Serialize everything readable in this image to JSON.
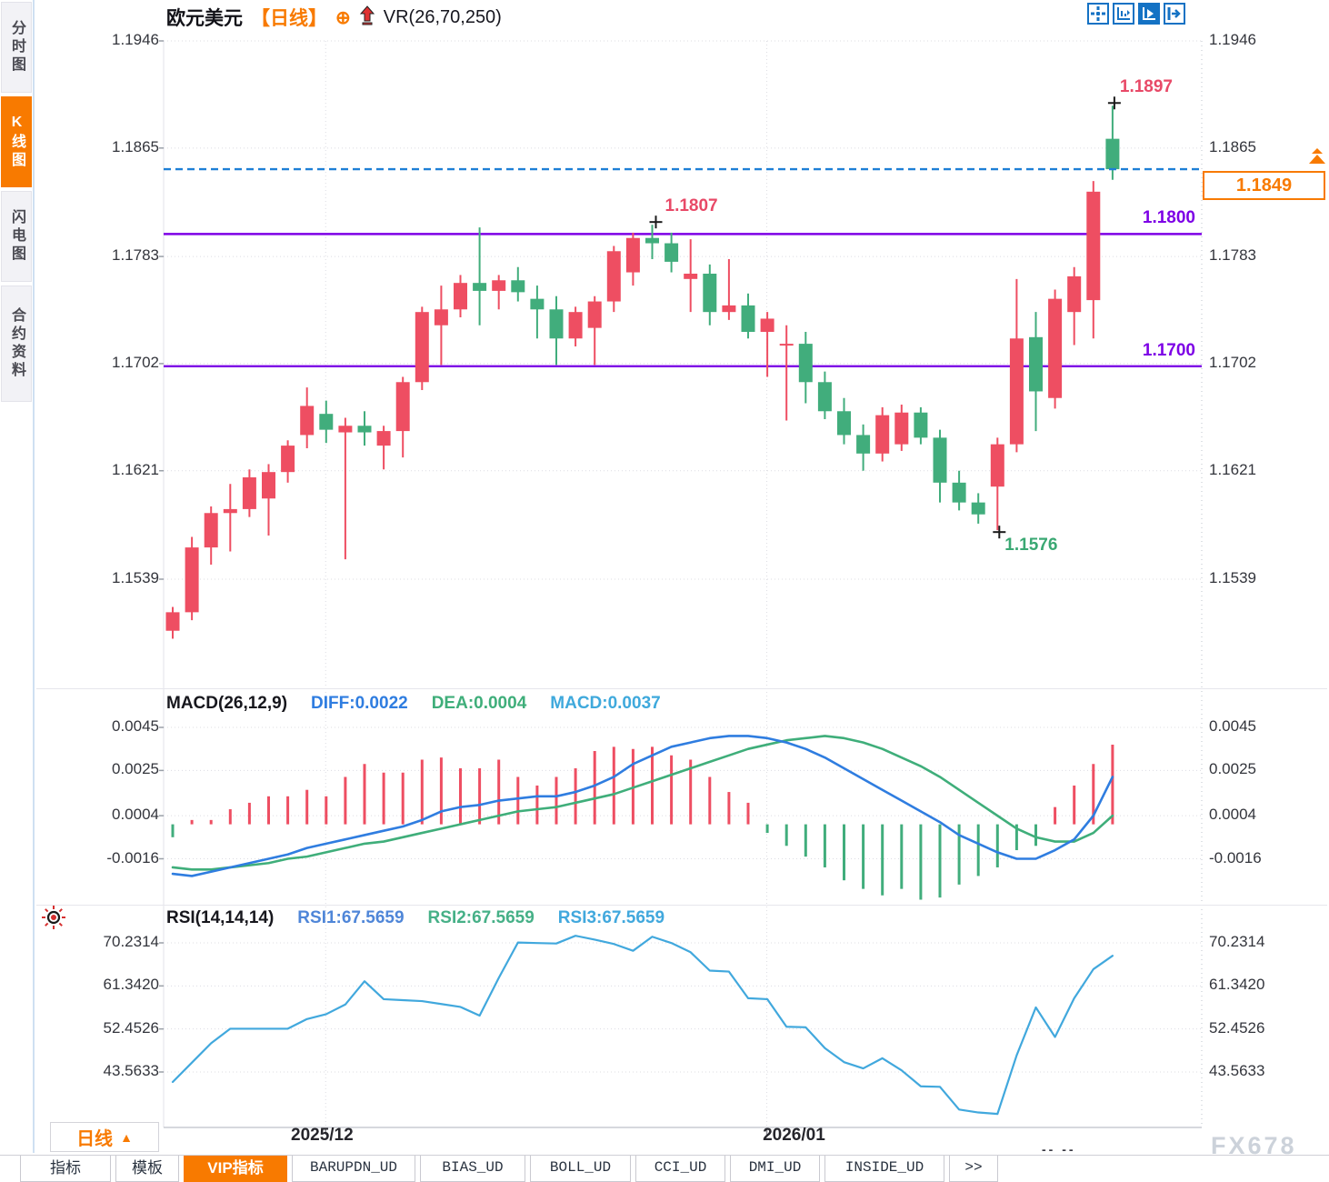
{
  "header": {
    "symbol": "欧元美元",
    "period_tag": "【日线】",
    "plus_circle": "⊕",
    "indicator": "VR(26,70,250)"
  },
  "sidebar": {
    "tabs": [
      {
        "label": "分时图",
        "active": false
      },
      {
        "label": "K线图",
        "active": true
      },
      {
        "label": "闪电图",
        "active": false
      },
      {
        "label": "合约资料",
        "active": false
      }
    ]
  },
  "toolbar": {
    "icons": [
      {
        "name": "crosshair-pan-icon",
        "active": false
      },
      {
        "name": "axis-scale-icon",
        "active": false
      },
      {
        "name": "axis-play-icon",
        "active": true
      },
      {
        "name": "exit-right-icon",
        "active": false
      }
    ]
  },
  "price_panel": {
    "axis_labels": [
      "1.1946",
      "1.1865",
      "1.1783",
      "1.1702",
      "1.1621",
      "1.1539"
    ],
    "level_labels": {
      "resistance": "1.1800",
      "support": "1.1700"
    },
    "marked_labels": {
      "end_high": "1.1897",
      "peak": "1.1807",
      "low": "1.1576"
    },
    "last_price": "1.1849"
  },
  "macd_panel": {
    "title": "MACD(26,12,9)",
    "diff_label": "DIFF:0.0022",
    "dea_label": "DEA:0.0004",
    "macd_label": "MACD:0.0037",
    "axis_labels": [
      "0.0045",
      "0.0025",
      "0.0004",
      "-0.0016"
    ]
  },
  "rsi_panel": {
    "title": "RSI(14,14,14)",
    "rsi1_label": "RSI1:67.5659",
    "rsi2_label": "RSI2:67.5659",
    "rsi3_label": "RSI3:67.5659",
    "axis_labels": [
      "70.2314",
      "61.3420",
      "52.4526",
      "43.5633"
    ]
  },
  "bottom": {
    "period_button": "日线",
    "period_caret": "▲",
    "mini_dashes": "-- --",
    "watermark": "FX678",
    "tabs": [
      {
        "label": "指标",
        "active": false,
        "mono": false
      },
      {
        "label": "模板",
        "active": false,
        "mono": false
      },
      {
        "label": "VIP指标",
        "active": true,
        "mono": false
      },
      {
        "label": "BARUPDN_UD",
        "active": false,
        "mono": true
      },
      {
        "label": "BIAS_UD",
        "active": false,
        "mono": true
      },
      {
        "label": "BOLL_UD",
        "active": false,
        "mono": true
      },
      {
        "label": "CCI_UD",
        "active": false,
        "mono": true
      },
      {
        "label": "DMI_UD",
        "active": false,
        "mono": true
      },
      {
        "label": "INSIDE_UD",
        "active": false,
        "mono": true
      },
      {
        "label": ">>",
        "active": false,
        "mono": true
      }
    ]
  },
  "colors": {
    "up": "#ee4e62",
    "down": "#41ad7c",
    "level_purple": "#7d00e6",
    "last_price_blue": "#1e7fd6",
    "accent_orange": "#f87a00",
    "diff_blue": "#2f7de0",
    "dea_green": "#3fae7a",
    "macd_lightblue": "#3fa9dc",
    "rsi_line": "#41a8dd",
    "rsi1_text": "#4f86d8",
    "rsi2_text": "#46b087",
    "rsi3_text": "#41a8dd",
    "label_red": "#e84967",
    "label_green": "#3aa873",
    "grid": "#dcdce2",
    "marker_black": "#1b1b1b"
  },
  "chart_data": {
    "type": "candlestick+indicators",
    "symbol": "EUR/USD 欧元美元",
    "timeframe": "daily",
    "x_axis": {
      "month_ticks": [
        {
          "label": "2025/12",
          "line_index": 8,
          "label_index": 8.2
        },
        {
          "label": "2026/01",
          "line_index": 31,
          "label_index": 32.8
        }
      ]
    },
    "price": {
      "gridline_values": [
        1.1946,
        1.1865,
        1.1783,
        1.1702,
        1.1621,
        1.1539
      ],
      "levels": [
        {
          "value": 1.18,
          "label": "1.1800",
          "style": "solid-purple"
        },
        {
          "value": 1.17,
          "label": "1.1700",
          "style": "solid-purple"
        }
      ],
      "last_price": {
        "value": 1.1849,
        "label": "1.1849",
        "style": "dashed-blue"
      },
      "marked_points": [
        {
          "index": 25,
          "price": 1.1807,
          "label": "1.1807",
          "type": "peak"
        },
        {
          "index": 49,
          "price": 1.1897,
          "label": "1.1897",
          "type": "end_high"
        },
        {
          "index": 43,
          "price": 1.1576,
          "label": "1.1576",
          "type": "low"
        }
      ],
      "candles_ohlc": [
        [
          1.15,
          1.1518,
          1.1494,
          1.1514
        ],
        [
          1.1514,
          1.1571,
          1.1508,
          1.1563
        ],
        [
          1.1563,
          1.1594,
          1.155,
          1.1589
        ],
        [
          1.1589,
          1.1611,
          1.156,
          1.1592
        ],
        [
          1.1592,
          1.1622,
          1.1586,
          1.1616
        ],
        [
          1.16,
          1.1626,
          1.1572,
          1.162
        ],
        [
          1.162,
          1.1644,
          1.1612,
          1.164
        ],
        [
          1.1648,
          1.1684,
          1.1638,
          1.167
        ],
        [
          1.1664,
          1.1674,
          1.1642,
          1.1652
        ],
        [
          1.165,
          1.1661,
          1.1554,
          1.1655
        ],
        [
          1.1655,
          1.1666,
          1.164,
          1.165
        ],
        [
          1.164,
          1.1655,
          1.1622,
          1.1651
        ],
        [
          1.1651,
          1.1692,
          1.1631,
          1.1688
        ],
        [
          1.1688,
          1.1745,
          1.1682,
          1.1741
        ],
        [
          1.1731,
          1.1761,
          1.1701,
          1.1743
        ],
        [
          1.1743,
          1.1769,
          1.1737,
          1.1763
        ],
        [
          1.1763,
          1.1805,
          1.1731,
          1.1757
        ],
        [
          1.1757,
          1.1769,
          1.1743,
          1.1765
        ],
        [
          1.1765,
          1.1775,
          1.1749,
          1.1756
        ],
        [
          1.1751,
          1.1761,
          1.1721,
          1.1743
        ],
        [
          1.1743,
          1.1753,
          1.1701,
          1.1721
        ],
        [
          1.1721,
          1.1745,
          1.1715,
          1.1741
        ],
        [
          1.1729,
          1.1753,
          1.1701,
          1.1749
        ],
        [
          1.1749,
          1.1791,
          1.1741,
          1.1787
        ],
        [
          1.1771,
          1.1801,
          1.1761,
          1.1797
        ],
        [
          1.1797,
          1.1807,
          1.1781,
          1.1793
        ],
        [
          1.1793,
          1.1801,
          1.1771,
          1.1779
        ],
        [
          1.1766,
          1.1796,
          1.1741,
          1.177
        ],
        [
          1.177,
          1.1777,
          1.1731,
          1.1741
        ],
        [
          1.1741,
          1.1781,
          1.1735,
          1.1746
        ],
        [
          1.1746,
          1.1755,
          1.1721,
          1.1726
        ],
        [
          1.1726,
          1.1741,
          1.1692,
          1.1736
        ],
        [
          1.1716,
          1.1731,
          1.1659,
          1.1717
        ],
        [
          1.1717,
          1.1726,
          1.1672,
          1.1688
        ],
        [
          1.1688,
          1.1696,
          1.166,
          1.1666
        ],
        [
          1.1666,
          1.1676,
          1.1641,
          1.1648
        ],
        [
          1.1648,
          1.1656,
          1.1621,
          1.1634
        ],
        [
          1.1634,
          1.1669,
          1.1628,
          1.1663
        ],
        [
          1.1641,
          1.1671,
          1.1636,
          1.1665
        ],
        [
          1.1665,
          1.1669,
          1.1641,
          1.1646
        ],
        [
          1.1646,
          1.1652,
          1.1597,
          1.1612
        ],
        [
          1.1612,
          1.1621,
          1.1591,
          1.1597
        ],
        [
          1.1597,
          1.1604,
          1.1581,
          1.1588
        ],
        [
          1.1609,
          1.1646,
          1.1576,
          1.1641
        ],
        [
          1.1641,
          1.1766,
          1.1635,
          1.1721
        ],
        [
          1.1722,
          1.1741,
          1.1651,
          1.1681
        ],
        [
          1.1676,
          1.1758,
          1.1668,
          1.1751
        ],
        [
          1.1741,
          1.1775,
          1.1716,
          1.1768
        ],
        [
          1.175,
          1.184,
          1.1721,
          1.1832
        ],
        [
          1.1872,
          1.1897,
          1.1841,
          1.1849
        ]
      ]
    },
    "macd": {
      "params": [
        26,
        12,
        9
      ],
      "current": {
        "diff": 0.0022,
        "dea": 0.0004,
        "macd": 0.0037
      },
      "gridline_values": [
        0.0045,
        0.0025,
        0.0004,
        -0.0016
      ],
      "diff": [
        -0.0023,
        -0.0024,
        -0.0022,
        -0.002,
        -0.0018,
        -0.0016,
        -0.0014,
        -0.0011,
        -0.0009,
        -0.0007,
        -0.0005,
        -0.0003,
        -0.0001,
        0.0002,
        0.0006,
        0.0008,
        0.0009,
        0.0011,
        0.0012,
        0.0013,
        0.0013,
        0.0015,
        0.0018,
        0.0022,
        0.0028,
        0.0032,
        0.0036,
        0.0038,
        0.004,
        0.0041,
        0.0041,
        0.004,
        0.0038,
        0.0035,
        0.0031,
        0.0026,
        0.0021,
        0.0016,
        0.0011,
        0.0006,
        0.0001,
        -0.0005,
        -0.0009,
        -0.0013,
        -0.0016,
        -0.0016,
        -0.0012,
        -0.0007,
        0.0004,
        0.0022
      ],
      "dea": [
        -0.002,
        -0.0021,
        -0.0021,
        -0.002,
        -0.0019,
        -0.0018,
        -0.0016,
        -0.0015,
        -0.0013,
        -0.0011,
        -0.0009,
        -0.0008,
        -0.0006,
        -0.0004,
        -0.0002,
        0.0,
        0.0002,
        0.0004,
        0.0006,
        0.0007,
        0.0008,
        0.001,
        0.0012,
        0.0014,
        0.0017,
        0.002,
        0.0023,
        0.0026,
        0.0029,
        0.0032,
        0.0035,
        0.0037,
        0.0039,
        0.004,
        0.0041,
        0.004,
        0.0038,
        0.0035,
        0.0031,
        0.0027,
        0.0022,
        0.0016,
        0.001,
        0.0004,
        -0.0002,
        -0.0006,
        -0.0008,
        -0.0008,
        -0.0004,
        0.0004
      ],
      "histogram": [
        -0.0006,
        0.0002,
        0.0002,
        0.0007,
        0.001,
        0.0013,
        0.0013,
        0.0016,
        0.0013,
        0.0022,
        0.0028,
        0.0024,
        0.0024,
        0.003,
        0.0031,
        0.0026,
        0.0026,
        0.003,
        0.0022,
        0.0018,
        0.0022,
        0.0026,
        0.0034,
        0.0036,
        0.0035,
        0.0036,
        0.0032,
        0.003,
        0.0022,
        0.0015,
        0.001,
        -0.0004,
        -0.001,
        -0.0015,
        -0.002,
        -0.0026,
        -0.003,
        -0.0033,
        -0.003,
        -0.0035,
        -0.0034,
        -0.0028,
        -0.0024,
        -0.002,
        -0.0012,
        -0.001,
        0.0008,
        0.0018,
        0.0028,
        0.0037
      ]
    },
    "rsi": {
      "params": [
        14,
        14,
        14
      ],
      "current": {
        "rsi1": 67.5659,
        "rsi2": 67.5659,
        "rsi3": 67.5659
      },
      "gridline_values": [
        70.2314,
        61.342,
        52.4526,
        43.5633
      ],
      "values": [
        41.5,
        45.5,
        49.5,
        52.5,
        52.5,
        52.5,
        52.5,
        54.5,
        55.5,
        57.5,
        62.3,
        58.6,
        58.4,
        58.2,
        57.6,
        57.0,
        55.2,
        63.0,
        70.3,
        70.2,
        70.1,
        71.7,
        70.9,
        70.0,
        68.6,
        71.5,
        70.2,
        68.3,
        64.5,
        64.3,
        58.8,
        58.6,
        52.9,
        52.8,
        48.5,
        45.6,
        44.3,
        46.4,
        43.9,
        40.6,
        40.5,
        35.8,
        35.2,
        34.9,
        47.0,
        56.9,
        50.8,
        58.8,
        64.8,
        67.5659
      ]
    }
  }
}
